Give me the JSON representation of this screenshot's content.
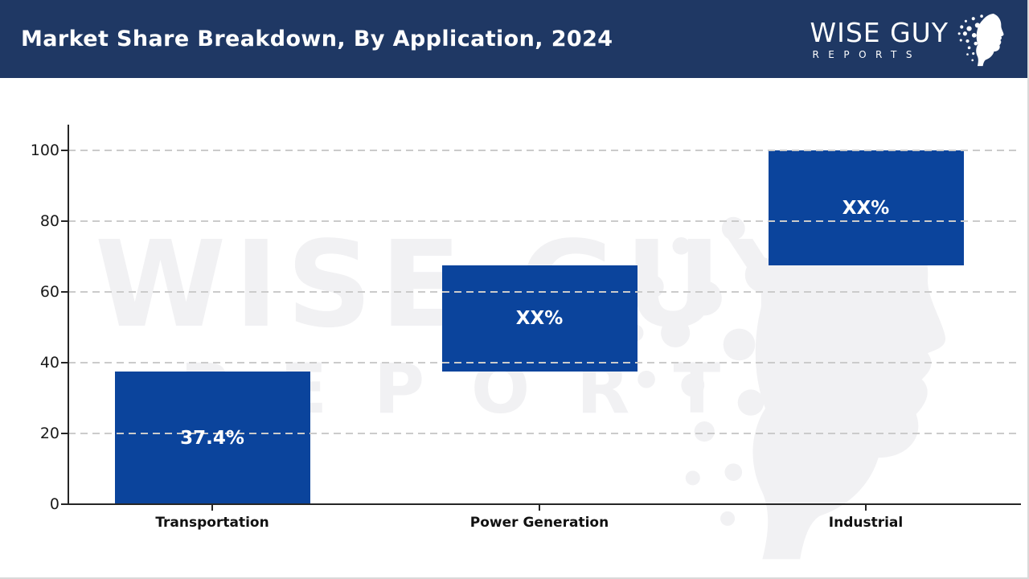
{
  "header": {
    "title": "Market Share Breakdown, By Application, 2024",
    "logo": {
      "line1": "WISE GUY",
      "line2": "REPORTS",
      "icon": "wiseguy-face-dots-icon"
    }
  },
  "watermark": {
    "line1": "WISE GUY",
    "line2": "REPORTS"
  },
  "colors": {
    "header_bg": "#1f3864",
    "bar": "#0b449c",
    "bar_label_text": "#ffffff",
    "grid": "#cbcbcb",
    "axis": "#262626",
    "watermark": "#f1f1f3"
  },
  "chart_data": {
    "type": "bar",
    "subtype": "waterfall-cumulative-percent",
    "title": "Market Share Breakdown, By Application, 2024",
    "categories": [
      "Transportation",
      "Power Generation",
      "Industrial"
    ],
    "series": [
      {
        "name": "Market Share",
        "segments": [
          {
            "category": "Transportation",
            "start": 0,
            "end": 37.4,
            "label": "37.4%"
          },
          {
            "category": "Power Generation",
            "start": 37.4,
            "end": 67.4,
            "label": "XX%"
          },
          {
            "category": "Industrial",
            "start": 67.4,
            "end": 100,
            "label": "XX%"
          }
        ]
      }
    ],
    "xlabel": "",
    "ylabel": "",
    "yticks": [
      0,
      20,
      40,
      60,
      80,
      100
    ],
    "ylim": [
      0,
      107
    ],
    "grid": "dashed-horizontal, drawn above bars",
    "legend": "none"
  }
}
